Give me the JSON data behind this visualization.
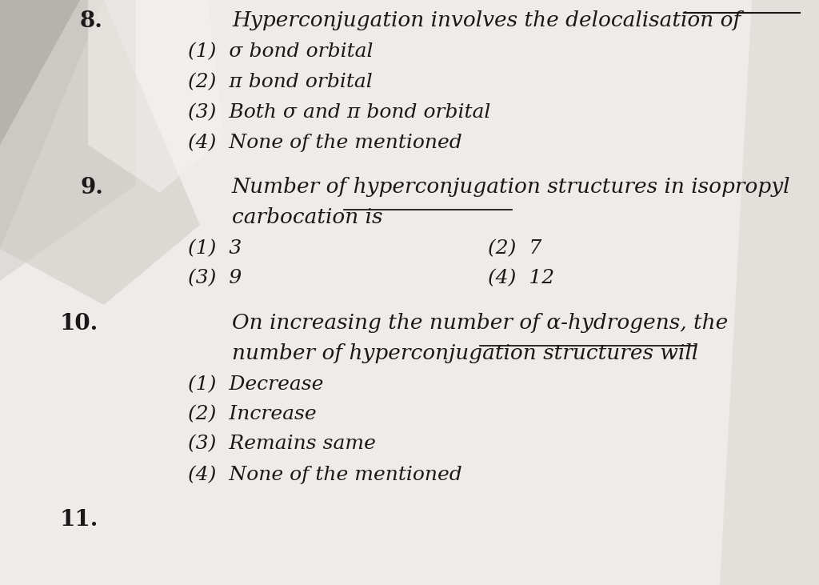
{
  "background_color": "#e8e6e2",
  "page_color": "#f0eeea",
  "shadow_color": "#c8c5c0",
  "text_color": "#1a1818",
  "q8_number": "8.",
  "q8_text": "Hyperconjugation involves the delocalisation of",
  "q8_options": [
    "(1)  σ bond orbital",
    "(2)  π bond orbital",
    "(3)  Both σ and π bond orbital",
    "(4)  None of the mentioned"
  ],
  "q9_number": "9.",
  "q9_line1": "Number of hyperconjugation structures in isopropyl",
  "q9_line2": "carbocation is",
  "q9_options_left": [
    "(1)  3",
    "(3)  9"
  ],
  "q9_options_right": [
    "(2)  7",
    "(4)  12"
  ],
  "q10_number": "10.",
  "q10_line1": "On increasing the number of α-hydrogens, the",
  "q10_line2": "number of hyperconjugation structures will",
  "q10_options": [
    "(1)  Decrease",
    "(2)  Increase",
    "(3)  Remains same",
    "(4)  None of the mentioned"
  ],
  "q11_partial": "11.",
  "font_size_q": 19,
  "font_size_opt": 18,
  "font_size_num": 20
}
